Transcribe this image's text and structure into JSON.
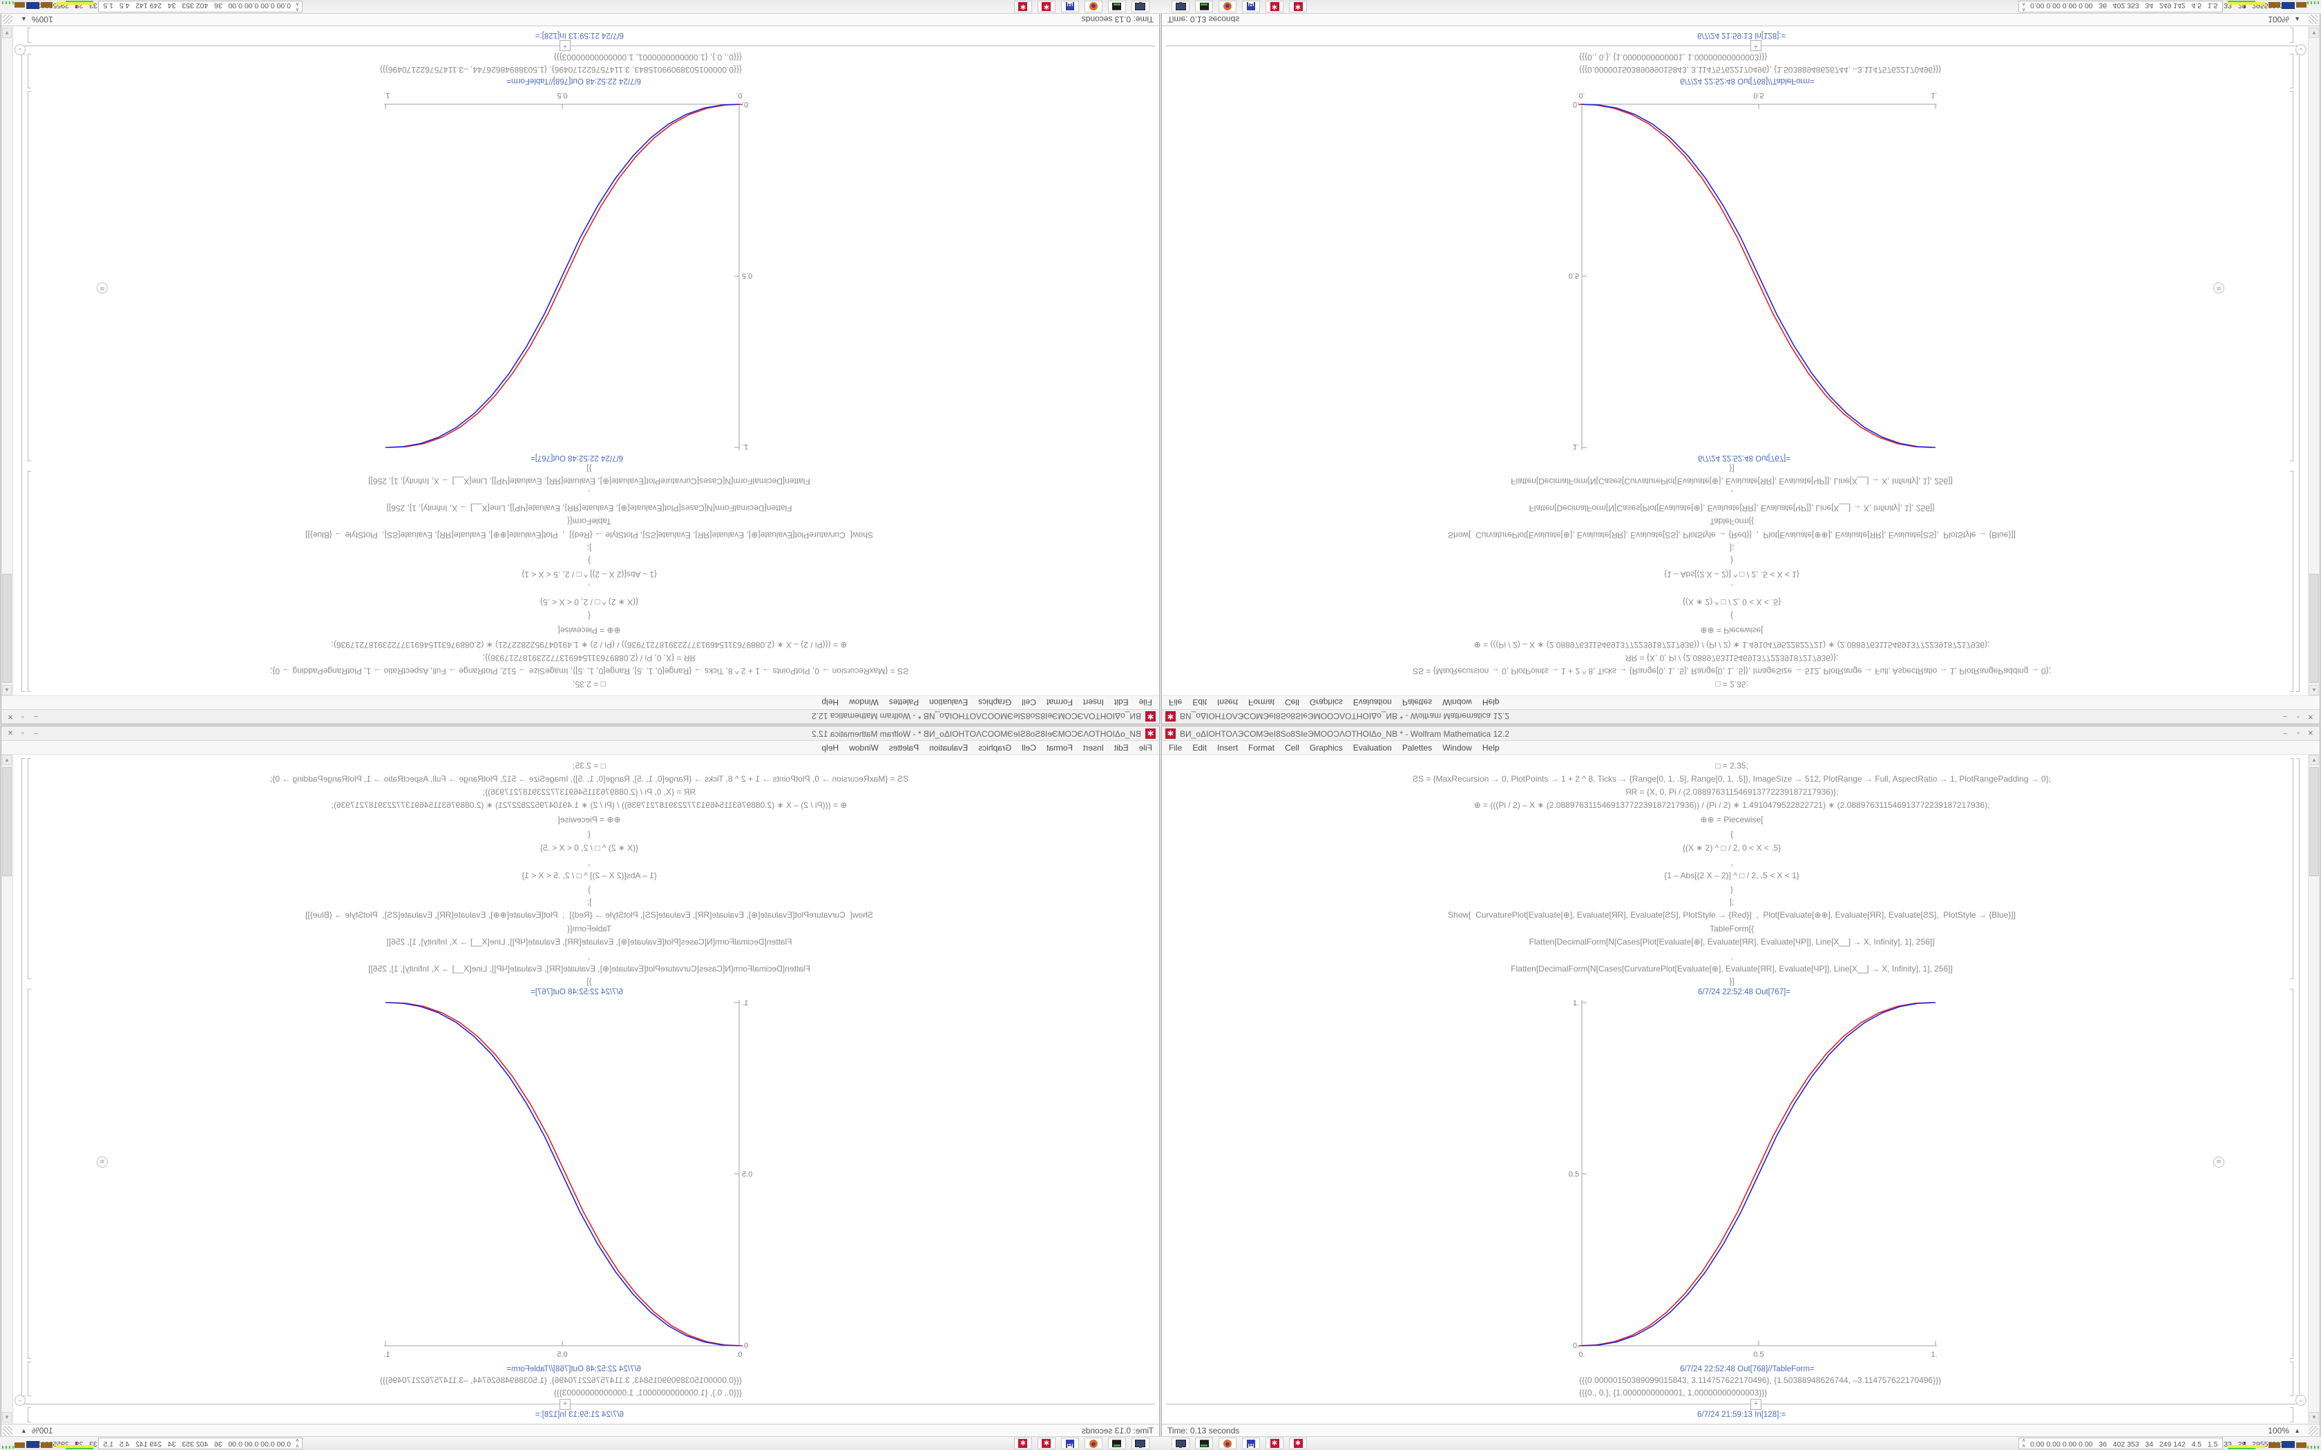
{
  "window": {
    "title": "ВИ_оΔIOHTOΛЭCOMЭеI8Ѕо8ЅIеЭMOOϽΛOTHOIΔо_NB * - Wolfram Mathematica 12.2",
    "menu": [
      "File",
      "Edit",
      "Insert",
      "Format",
      "Cell",
      "Graphics",
      "Evaluation",
      "Palettes",
      "Window",
      "Help"
    ],
    "controls": {
      "minimize": "–",
      "maximize": "▫",
      "close": "✕"
    }
  },
  "notebook": {
    "input_lines": [
      "□ = 2.35;",
      "ƧS = {MaxRecursion → 0, PlotPoints → 1 + 2 ^ 8, Ticks → {Range[0, 1, .5], Range[0, 1, .5]}, ImageSize → 512, PlotRange → Full, AspectRatio → 1, PlotRangePadding → 0};",
      "ЯR = {X, 0, Pi / (2.088976311546913772239187217936)};",
      "⊕ = (((Pi / 2) – X ∗ (2.088976311546913772239187217936)) / (Pi / 2) ∗ 1.4910479522822721) ∗ (2.088976311546913772239187217936);",
      "⊕⊕ = Piecewise[",
      "{",
      "{(X ∗ 2) ^ □ / 2, 0 < X < .5}",
      ",",
      "{1 – Abs[(2 X – 2)] ^ □ / 2, .5 < X < 1}",
      "}",
      "];",
      "Show[  CurvaturePlot[Evaluate[⊕], Evaluate[ЯR], Evaluate[ƧS], PlotStyle → {Red}]  ,  Plot[Evaluate[⊕⊕], Evaluate[ЯR], Evaluate[ƧS],  PlotStyle → {Blue}]]",
      "TableForm[{",
      "Flatten[DecimalForm[N[Cases[Plot[Evaluate[⊕], Evaluate[ЯR], Evaluate[ЧP]], Line[X__] → X, Infinity], 1], 256]]",
      ",",
      "Flatten[DecimalForm[N[Cases[CurvaturePlot[Evaluate[⊕], Evaluate[ЯR], Evaluate[ЧP]], Line[X__] → X, Infinity], 1], 256]]",
      "}]"
    ],
    "out_plot_label": "6/7/24 22:52:48 Out[767]=",
    "out_table_label": "6/7/24 22:52:48 Out[768]//TableForm=",
    "table_rows": [
      "{{{0.00000150389099015843, 3.114757622170496}, {1.50388948626744, –3.114757622170496}}}",
      "{{{0., 0.}, {1.0000000000001, 1.00000000000003}}}"
    ],
    "next_in_label": "6/7/24 21:59:13 In[128]:=",
    "plus_glyph": "+"
  },
  "chart_data": {
    "type": "line",
    "title": "",
    "xlabel": "",
    "ylabel": "",
    "xlim": [
      0,
      1
    ],
    "ylim": [
      0,
      1
    ],
    "x_ticks": [
      "0.",
      "0.5",
      "1."
    ],
    "y_ticks": [
      "0.",
      "0.5",
      "1."
    ],
    "grid": false,
    "legend_position": "none",
    "x": [
      0,
      0.05,
      0.1,
      0.15,
      0.2,
      0.25,
      0.3,
      0.35,
      0.4,
      0.45,
      0.5,
      0.55,
      0.6,
      0.65,
      0.7,
      0.75,
      0.8,
      0.85,
      0.9,
      0.95,
      1
    ],
    "series": [
      {
        "name": "CurvaturePlot[⊕] (Red)",
        "color": "#dd2222",
        "values": [
          0,
          0.0022,
          0.0114,
          0.0295,
          0.058,
          0.098,
          0.1505,
          0.216,
          0.296,
          0.39,
          0.5,
          0.61,
          0.704,
          0.784,
          0.8495,
          0.902,
          0.942,
          0.9705,
          0.9886,
          0.9978,
          1
        ]
      },
      {
        "name": "Plot[⊕⊕] Piecewise (Blue)",
        "color": "#2222dd",
        "values": [
          0,
          0.0022,
          0.0114,
          0.0295,
          0.058,
          0.098,
          0.1505,
          0.216,
          0.296,
          0.39,
          0.5,
          0.61,
          0.704,
          0.784,
          0.8495,
          0.902,
          0.942,
          0.9705,
          0.9886,
          0.9978,
          1
        ]
      }
    ]
  },
  "statusbar": {
    "time": "Time: 0.13 seconds",
    "zoom": "100%"
  },
  "taskbar": {
    "launchers": [
      {
        "name": "monitor-icon"
      },
      {
        "name": "terminal-icon"
      },
      {
        "name": "firefox-icon"
      },
      {
        "name": "floppy64-icon",
        "label": "64"
      },
      {
        "name": "mathematica-gear-icon"
      },
      {
        "name": "mathematica-gear-icon-2"
      }
    ],
    "tray_text": "0.00 0.00 0.00 0.00   36   402 353   34   249 142   4.5   1.5   33   29   29553811"
  },
  "colors": {
    "red_curve": "#dd2222",
    "blue_curve": "#2222dd",
    "label_blue": "#4f6bbf",
    "gear_red": "#c41230"
  }
}
